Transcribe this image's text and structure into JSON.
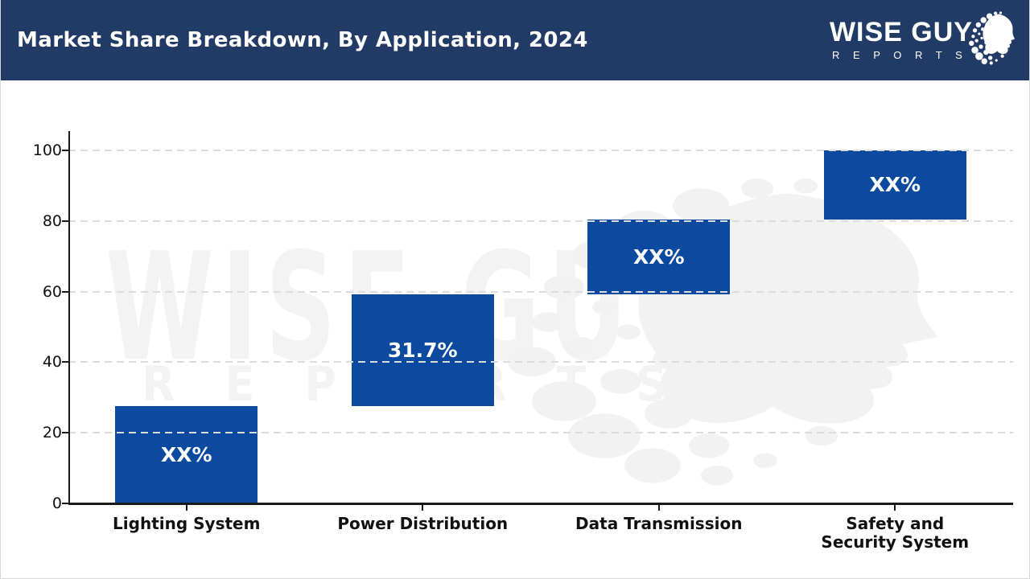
{
  "header": {
    "title": "Market Share Breakdown, By Application, 2024",
    "logo": {
      "name_top": "WISE GUY",
      "name_bottom": "R E P O R T S"
    }
  },
  "watermark": {
    "text_top": "WISE GUY",
    "text_bottom": "R E P O R T S"
  },
  "chart_data": {
    "type": "bar",
    "subtype": "floating-waterfall-segments",
    "title": "Market Share Breakdown, By Application, 2024",
    "categories": [
      {
        "label_lines": [
          "Lighting System"
        ]
      },
      {
        "label_lines": [
          "Power Distribution"
        ]
      },
      {
        "label_lines": [
          "Data Transmission"
        ]
      },
      {
        "label_lines": [
          "Safety and",
          "Security System"
        ]
      }
    ],
    "segments": [
      {
        "name": "Lighting System",
        "start": 0,
        "end": 27.5,
        "height": 27.5,
        "label": "XX%"
      },
      {
        "name": "Power Distribution",
        "start": 27.5,
        "end": 59.2,
        "height": 31.7,
        "label": "31.7%"
      },
      {
        "name": "Data Transmission",
        "start": 59.2,
        "end": 80.5,
        "height": 21.3,
        "label": "XX%"
      },
      {
        "name": "Safety and Security System",
        "start": 80.5,
        "end": 100,
        "height": 19.5,
        "label": "XX%"
      }
    ],
    "xlabel": "",
    "ylabel": "",
    "yticks": [
      0,
      20,
      40,
      60,
      80,
      100
    ],
    "ylim": [
      0,
      105
    ],
    "grid": "horizontal-dashed",
    "legend": "none",
    "colors": {
      "bar": "#0b4a9e",
      "bar_label": "#ffffff",
      "header_bg": "#213a66",
      "axis": "#1a1a1a",
      "gridline": "#dcdcdc",
      "watermark": "#f3f3f3"
    }
  }
}
